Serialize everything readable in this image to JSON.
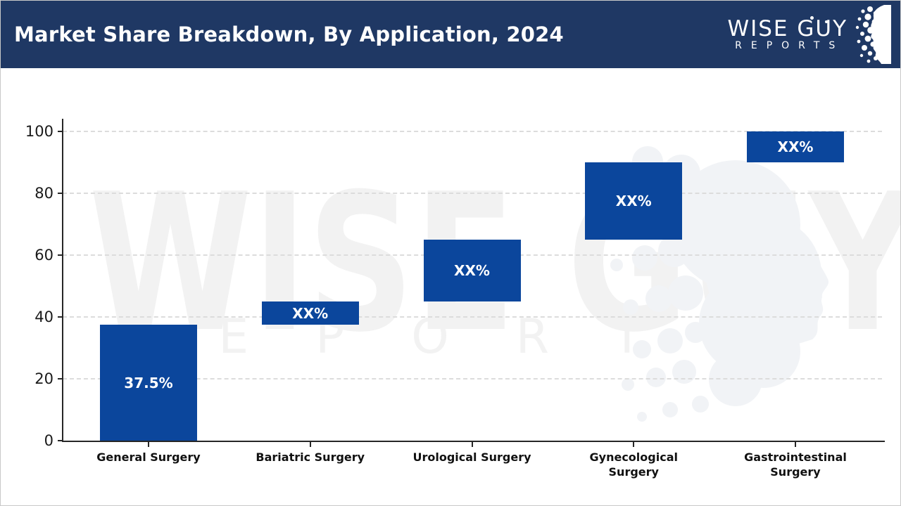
{
  "header": {
    "title": "Market Share Breakdown, By Application, 2024",
    "background_color": "#1f3864",
    "logo": {
      "line1": "WISE GUY",
      "line2": "REPORTS"
    }
  },
  "watermark": {
    "line1": "WISE GUY",
    "line2": "REPORTS"
  },
  "chart_data": {
    "type": "bar",
    "subtype": "waterfall-floating-bars",
    "title": "Market Share Breakdown, By Application, 2024",
    "categories": [
      "General Surgery",
      "Bariatric Surgery",
      "Urological Surgery",
      "Gynecological\nSurgery",
      "Gastrointestinal\nSurgery"
    ],
    "bars": [
      {
        "category": "General Surgery",
        "start": 0,
        "end": 37.5,
        "label": "37.5%"
      },
      {
        "category": "Bariatric Surgery",
        "start": 37.5,
        "end": 45,
        "label": "XX%"
      },
      {
        "category": "Urological Surgery",
        "start": 45,
        "end": 65,
        "label": "XX%"
      },
      {
        "category": "Gynecological Surgery",
        "start": 65,
        "end": 90,
        "label": "XX%"
      },
      {
        "category": "Gastrointestinal Surgery",
        "start": 90,
        "end": 100,
        "label": "XX%"
      }
    ],
    "yticks": [
      0,
      20,
      40,
      60,
      80,
      100
    ],
    "ylim": [
      0,
      104
    ],
    "xlabel": "",
    "ylabel": "",
    "bar_color": "#0b469c",
    "bar_label_color": "#ffffff",
    "grid": true,
    "gridline_style": "dashed",
    "legend": false
  }
}
